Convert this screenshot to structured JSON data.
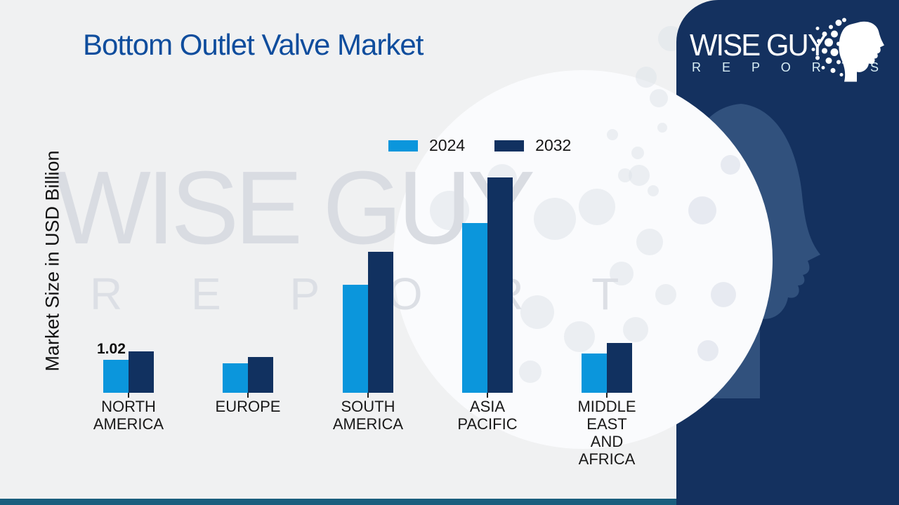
{
  "title": "Bottom Outlet Valve Market",
  "y_axis_label": "Market Size in USD Billion",
  "legend": {
    "items": [
      {
        "label": "2024"
      },
      {
        "label": "2032"
      }
    ]
  },
  "chart_data": {
    "type": "bar",
    "title": "Bottom Outlet Valve Market",
    "xlabel": "",
    "ylabel": "Market Size in USD Billion",
    "unit": "USD Billion",
    "categories": [
      "NORTH AMERICA",
      "EUROPE",
      "SOUTH AMERICA",
      "ASIA PACIFIC",
      "MIDDLE EAST AND AFRICA"
    ],
    "category_lines": [
      [
        "NORTH",
        "AMERICA"
      ],
      [
        "EUROPE"
      ],
      [
        "SOUTH",
        "AMERICA"
      ],
      [
        "ASIA",
        "PACIFIC"
      ],
      [
        "MIDDLE",
        "EAST",
        "AND",
        "AFRICA"
      ]
    ],
    "series": [
      {
        "name": "2024",
        "color": "#0b96dc",
        "values": [
          1.02,
          0.91,
          3.34,
          5.27,
          1.21
        ]
      },
      {
        "name": "2032",
        "color": "#113160",
        "values": [
          1.28,
          1.11,
          4.38,
          6.68,
          1.54
        ]
      }
    ],
    "annotations": [
      {
        "series": "2024",
        "category": "NORTH AMERICA",
        "text": "1.02"
      }
    ],
    "legend_position": "top",
    "grid": false,
    "ylim": [
      0,
      7
    ]
  },
  "watermark": {
    "line1": "WISE GUY",
    "line2": "R E P O R T S"
  },
  "brand": {
    "line1": "WISE GUY",
    "line2": "R E P O R T S",
    "face_icon": "wise-guy-face-icon"
  },
  "colors": {
    "title": "#0f4d9d",
    "bar_2024": "#0b96dc",
    "bar_2032": "#113160",
    "panel": "#14315f",
    "panel_face": "#31517d",
    "teal_strip": "#1a5e7e",
    "background": "#f0f1f2",
    "watermark_text": "#d9dce2"
  }
}
